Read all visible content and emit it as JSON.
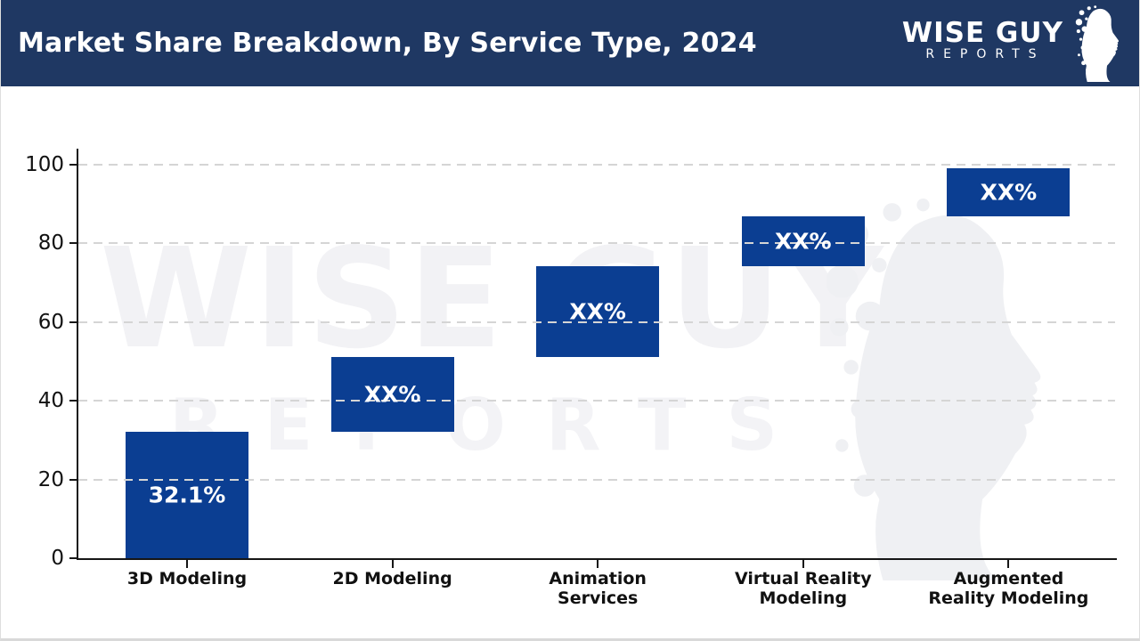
{
  "header": {
    "title": "Market Share Breakdown, By Service Type, 2024",
    "bg_color": "#1f3863",
    "logo": {
      "line1": "WISE GUY",
      "line2": "REPORTS"
    }
  },
  "watermark": {
    "line1": "WISE GUY",
    "line2": "REPORTS"
  },
  "chart_data": {
    "type": "bar",
    "subtype": "waterfall",
    "title": "Market Share Breakdown, By Service Type, 2024",
    "categories": [
      "3D Modeling",
      "2D Modeling",
      "Animation Services",
      "Virtual Reality Modeling",
      "Augmented Reality Modeling"
    ],
    "segments": [
      {
        "category": "3D Modeling",
        "start": 0,
        "end": 32.1,
        "label": "32.1%"
      },
      {
        "category": "2D Modeling",
        "start": 32.1,
        "end": 51.2,
        "label": "XX%"
      },
      {
        "category": "Animation Services",
        "start": 51.2,
        "end": 74.1,
        "label": "XX%"
      },
      {
        "category": "Virtual Reality Modeling",
        "start": 74.1,
        "end": 86.9,
        "label": "XX%"
      },
      {
        "category": "Augmented Reality Modeling",
        "start": 86.9,
        "end": 99.2,
        "label": "XX%"
      }
    ],
    "yticks": [
      0,
      20,
      40,
      60,
      80,
      100
    ],
    "ylim": [
      0,
      105
    ],
    "xlabel": "",
    "ylabel": "",
    "bar_color": "#0b3e92",
    "grid": true,
    "gridline_style": "dashed",
    "legend": false
  }
}
